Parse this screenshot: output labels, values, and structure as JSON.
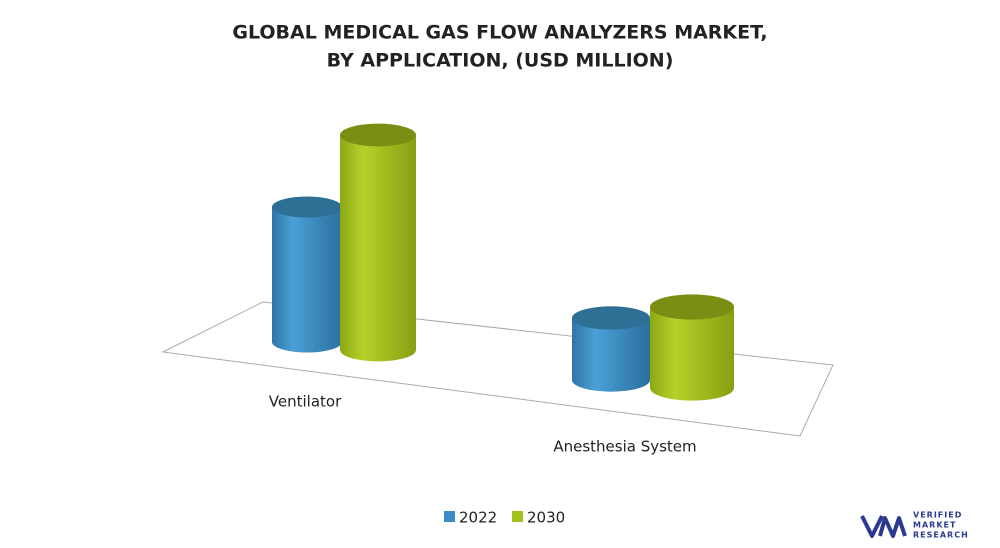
{
  "chart_data": {
    "type": "bar3d",
    "title": "GLOBAL MEDICAL GAS FLOW ANALYZERS MARKET,",
    "subtitle": "BY APPLICATION, (USD MILLION)",
    "categories": [
      "Ventilator",
      "Anesthesia System"
    ],
    "series": [
      {
        "name": "2022",
        "color": "#3a8cc4",
        "values": [
          135,
          62
        ]
      },
      {
        "name": "2030",
        "color": "#a4c21e",
        "values": [
          215,
          81
        ]
      }
    ],
    "legend": "bottom"
  },
  "logo": {
    "line1": "VERIFIED",
    "line2": "MARKET",
    "line3": "RESEARCH"
  }
}
